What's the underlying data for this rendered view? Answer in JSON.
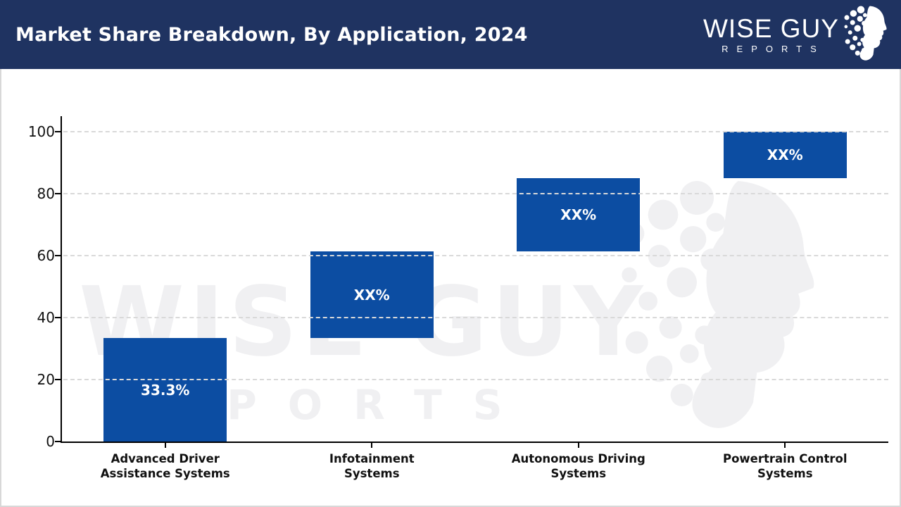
{
  "header": {
    "title": "Market Share Breakdown, By Application, 2024",
    "logo": {
      "name": "WISE GUY",
      "sub": "REPORTS"
    }
  },
  "watermark": {
    "line1": "WISE GUY",
    "line2": "REPORTS"
  },
  "colors": {
    "header_bg": "#1f3361",
    "bar_blue": "#0c4da2",
    "grid_gray": "#d9d9d9",
    "watermark_gray": "#f0f0f2",
    "axis_black": "#000000",
    "bar_label_white": "#ffffff"
  },
  "chart_data": {
    "type": "bar",
    "variant": "floating-segment-waterfall",
    "title": "Market Share Breakdown, By Application, 2024",
    "categories": [
      "Advanced Driver\nAssistance Systems",
      "Infotainment\nSystems",
      "Autonomous Driving\nSystems",
      "Powertrain Control\nSystems"
    ],
    "bars": [
      {
        "category": "Advanced Driver Assistance Systems",
        "from": 0,
        "to": 33.3,
        "label": "33.3%"
      },
      {
        "category": "Infotainment Systems",
        "from": 33.3,
        "to": 61.3,
        "label": "XX%"
      },
      {
        "category": "Autonomous Driving Systems",
        "from": 61.3,
        "to": 85.0,
        "label": "XX%"
      },
      {
        "category": "Powertrain Control Systems",
        "from": 85.0,
        "to": 100.0,
        "label": "XX%"
      }
    ],
    "xlabel": "",
    "ylabel": "",
    "ylim": [
      0,
      100
    ],
    "yticks": [
      0,
      20,
      40,
      60,
      80,
      100
    ],
    "grid": "dashed-horizontal",
    "legend": "none"
  }
}
